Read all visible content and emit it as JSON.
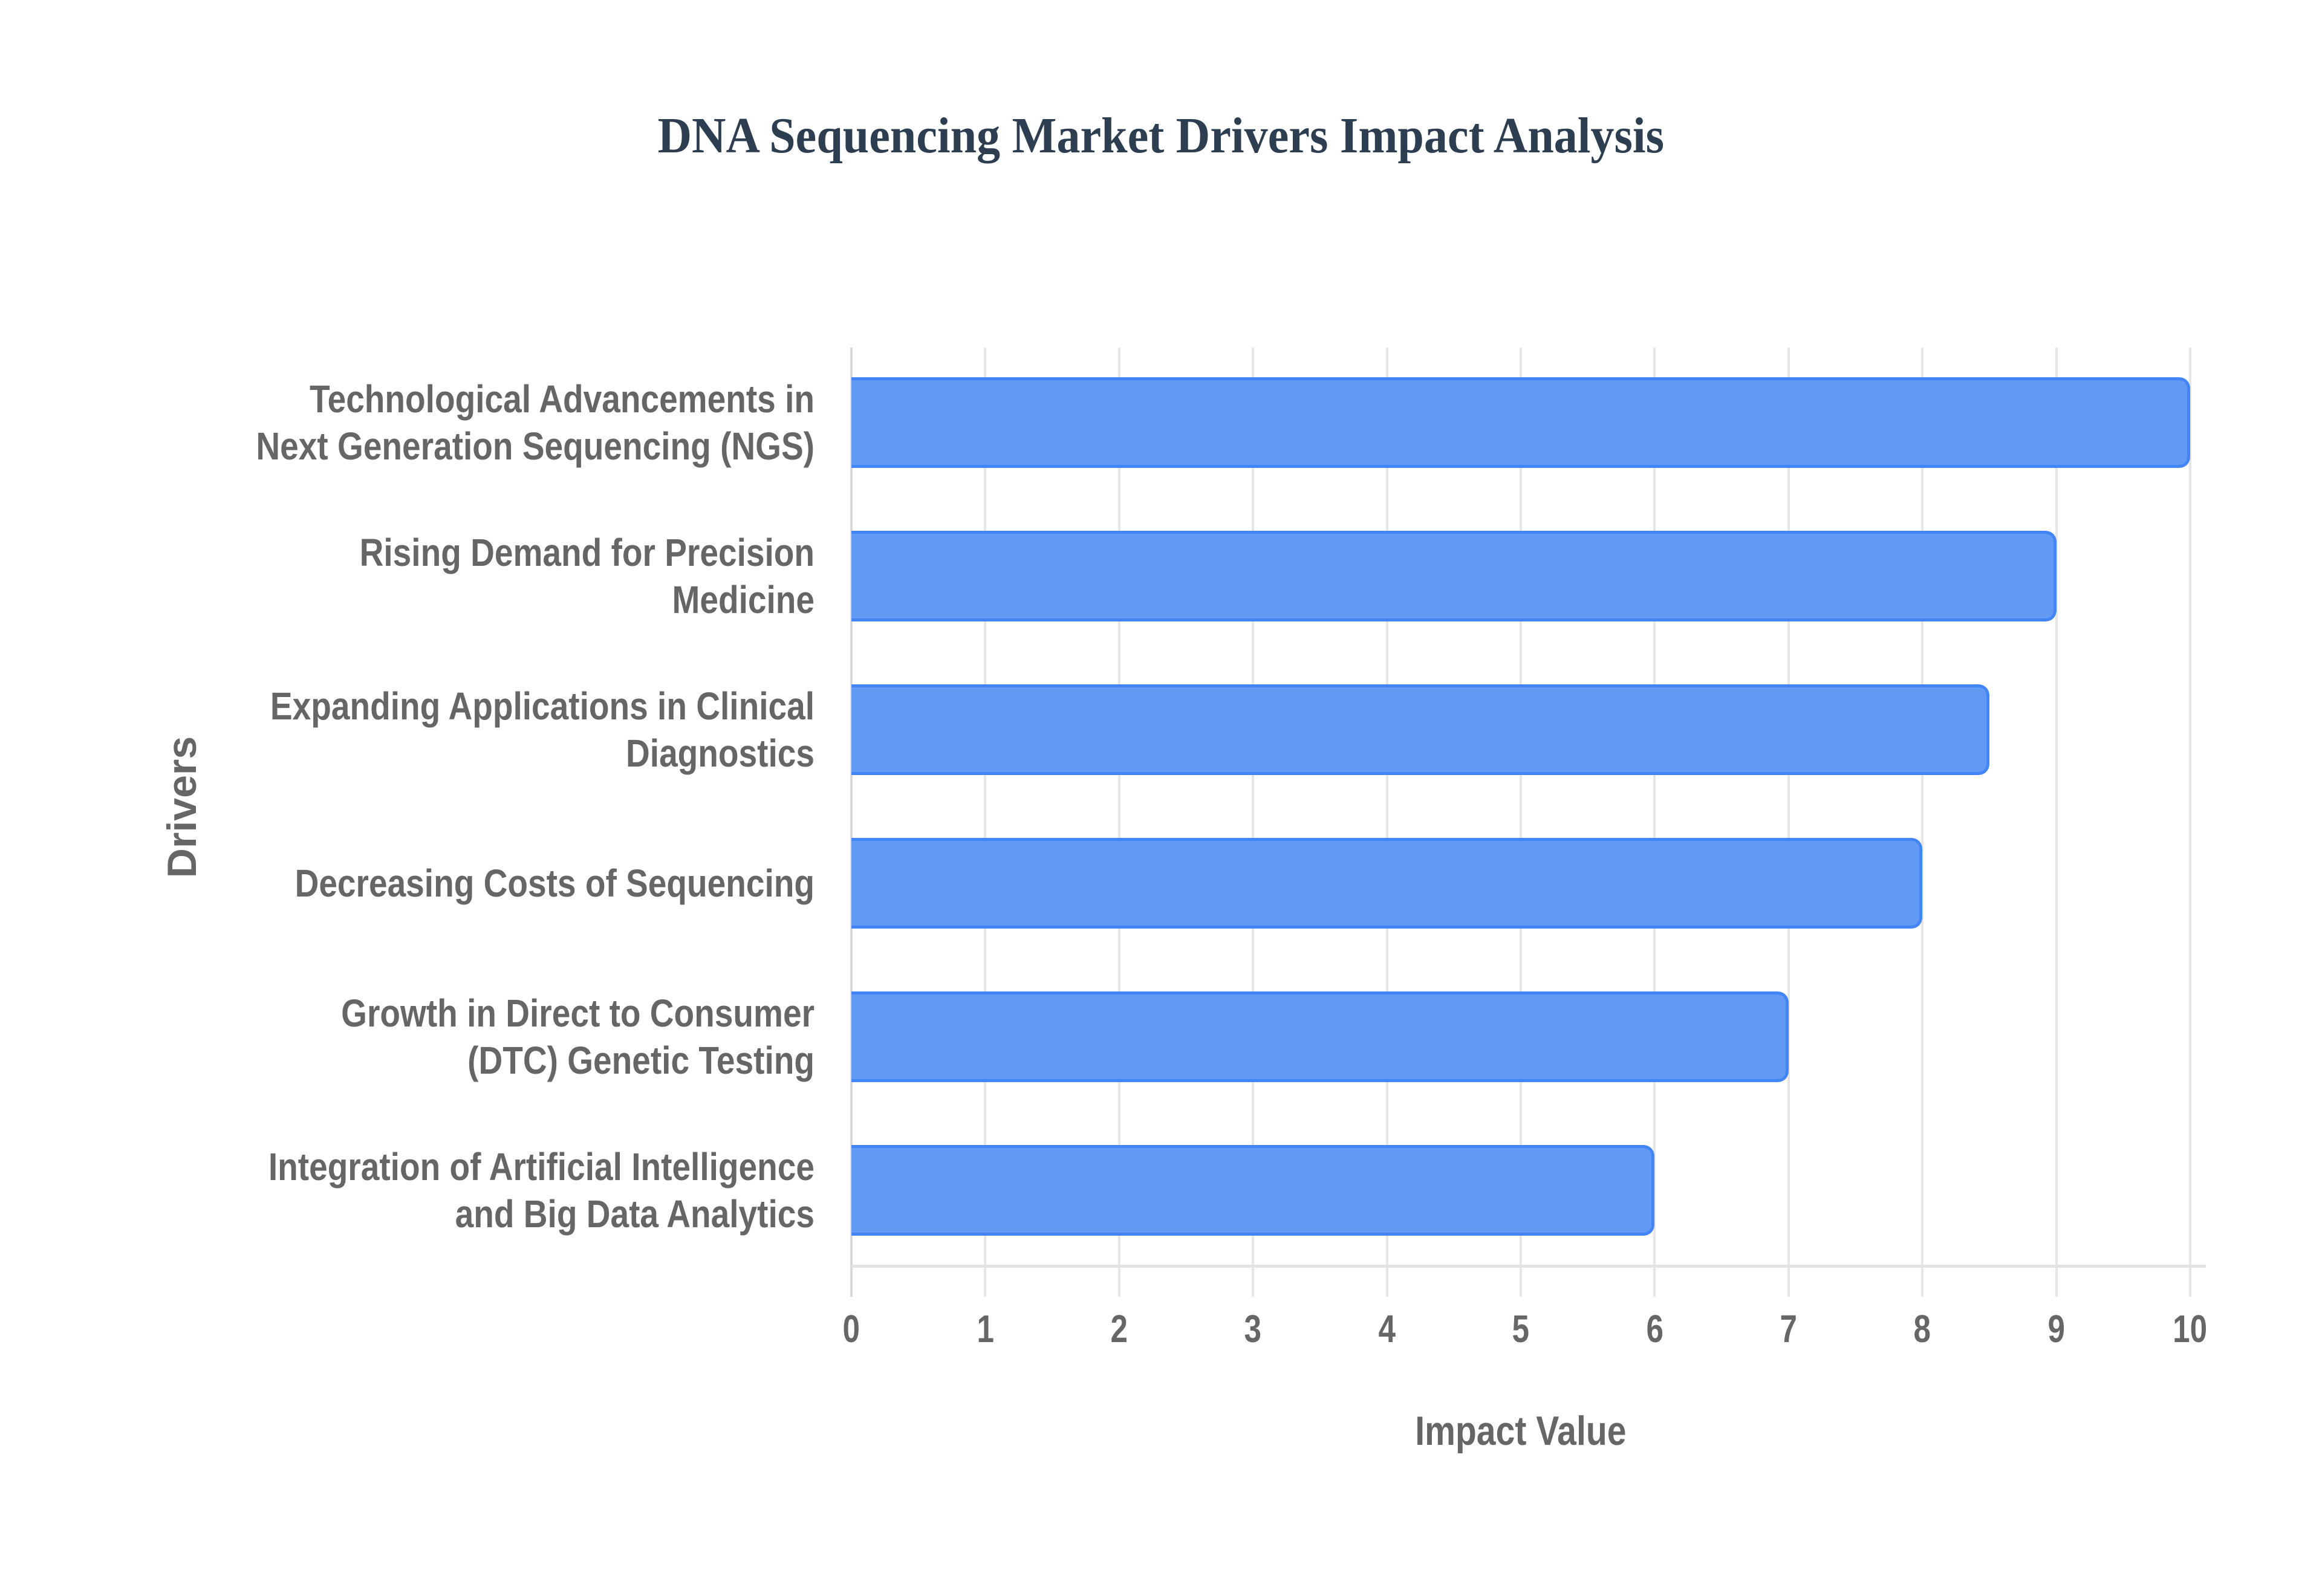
{
  "title": "DNA Sequencing Market Drivers Impact Analysis",
  "colors": {
    "bar_fill": "#6199f4",
    "bar_border": "#4285f4",
    "title": "#2c3e50",
    "labels": "#666666",
    "grid": "#e6e6e6"
  },
  "axes": {
    "x_title": "Impact Value",
    "y_title": "Drivers",
    "x_ticks": [
      "0",
      "1",
      "2",
      "3",
      "4",
      "5",
      "6",
      "7",
      "8",
      "9",
      "10"
    ]
  },
  "categories": [
    {
      "label": "Technological Advancements in Next Generation Sequencing (NGS)",
      "value": 10
    },
    {
      "label": "Rising Demand for Precision Medicine",
      "value": 9
    },
    {
      "label": "Expanding Applications in Clinical Diagnostics",
      "value": 8.5
    },
    {
      "label": "Decreasing Costs of Sequencing",
      "value": 8
    },
    {
      "label": "Growth in Direct to Consumer (DTC) Genetic Testing",
      "value": 7
    },
    {
      "label": "Integration of Artificial Intelligence and Big Data Analytics",
      "value": 6
    }
  ],
  "chart_data": {
    "type": "bar",
    "orientation": "horizontal",
    "title": "DNA Sequencing Market Drivers Impact Analysis",
    "categories": [
      "Technological Advancements in Next Generation Sequencing (NGS)",
      "Rising Demand for Precision Medicine",
      "Expanding Applications in Clinical Diagnostics",
      "Decreasing Costs of Sequencing",
      "Growth in Direct to Consumer (DTC) Genetic Testing",
      "Integration of Artificial Intelligence and Big Data Analytics"
    ],
    "values": [
      10,
      9,
      8.5,
      8,
      7,
      6
    ],
    "xlabel": "Impact Value",
    "ylabel": "Drivers",
    "xlim": [
      0,
      10
    ],
    "x_ticks": [
      0,
      1,
      2,
      3,
      4,
      5,
      6,
      7,
      8,
      9,
      10
    ],
    "grid": true,
    "legend": "none"
  }
}
